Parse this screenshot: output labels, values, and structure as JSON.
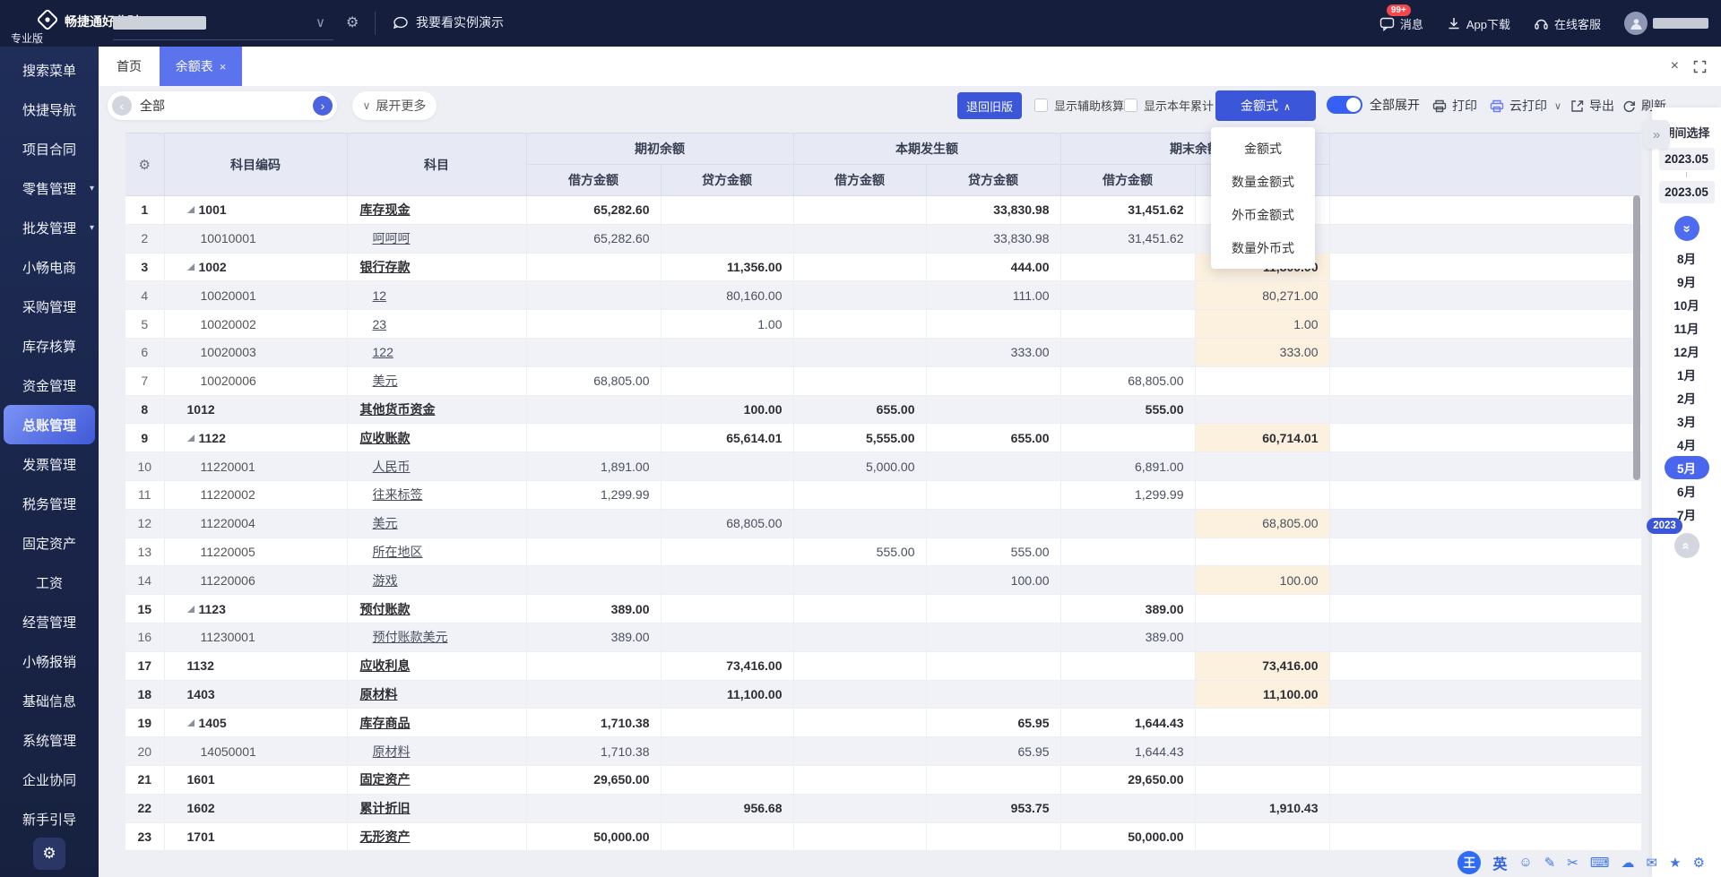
{
  "topbar": {
    "brand": "畅捷通好业财",
    "brand_sub": "专业版",
    "demo_link": "我要看实例演示",
    "messages_label": "消息",
    "messages_badge": "99+",
    "app_download": "App下载",
    "online_service": "在线客服"
  },
  "tabs": {
    "home": "首页",
    "active": "余额表"
  },
  "icons": {
    "chevron_left": "‹",
    "chevron_right": "›",
    "chevron_down": "∨",
    "chevron_up": "∧",
    "close": "×",
    "collapse_right": "»",
    "double_chevron": "«",
    "gear": "⚙",
    "caret_down_small": "▾"
  },
  "toolbar": {
    "filter_all": "全部",
    "expand_more": "展开更多",
    "back_old": "退回旧版",
    "cb_aux": "显示辅助核算",
    "cb_ytd": "显示本年累计",
    "amount_style": "金额式",
    "expand_all": "全部展开",
    "print": "打印",
    "cloud_print": "云打印",
    "export": "导出",
    "refresh": "刷新"
  },
  "dropdown": {
    "items": [
      "金额式",
      "数量金额式",
      "外币金额式",
      "数量外币式"
    ]
  },
  "table": {
    "headers": {
      "code": "科目编码",
      "subject": "科目",
      "opening": "期初余额",
      "current": "本期发生额",
      "closing": "期末余额",
      "debit": "借方金额",
      "credit": "贷方金额"
    },
    "rows": [
      {
        "n": 1,
        "code": "1001",
        "name": "库存现金",
        "parent": true,
        "tri": true,
        "oj": "65,282.60",
        "oc": "",
        "cj": "",
        "cc": "33,830.98",
        "ej": "31,451.62",
        "ec": "",
        "hl": false
      },
      {
        "n": 2,
        "code": "10010001",
        "name": "呵呵呵",
        "parent": false,
        "tri": false,
        "oj": "65,282.60",
        "oc": "",
        "cj": "",
        "cc": "33,830.98",
        "ej": "31,451.62",
        "ec": "",
        "hl": false
      },
      {
        "n": 3,
        "code": "1002",
        "name": "银行存款",
        "parent": true,
        "tri": true,
        "oj": "",
        "oc": "11,356.00",
        "cj": "",
        "cc": "444.00",
        "ej": "",
        "ec": "11,800.00",
        "hl": true
      },
      {
        "n": 4,
        "code": "10020001",
        "name": "12",
        "parent": false,
        "tri": false,
        "oj": "",
        "oc": "80,160.00",
        "cj": "",
        "cc": "111.00",
        "ej": "",
        "ec": "80,271.00",
        "hl": true
      },
      {
        "n": 5,
        "code": "10020002",
        "name": "23",
        "parent": false,
        "tri": false,
        "oj": "",
        "oc": "1.00",
        "cj": "",
        "cc": "",
        "ej": "",
        "ec": "1.00",
        "hl": true
      },
      {
        "n": 6,
        "code": "10020003",
        "name": "122",
        "parent": false,
        "tri": false,
        "oj": "",
        "oc": "",
        "cj": "",
        "cc": "333.00",
        "ej": "",
        "ec": "333.00",
        "hl": true
      },
      {
        "n": 7,
        "code": "10020006",
        "name": "美元",
        "parent": false,
        "tri": false,
        "oj": "68,805.00",
        "oc": "",
        "cj": "",
        "cc": "",
        "ej": "68,805.00",
        "ec": "",
        "hl": false
      },
      {
        "n": 8,
        "code": "1012",
        "name": "其他货币资金",
        "parent": true,
        "tri": false,
        "oj": "",
        "oc": "100.00",
        "cj": "655.00",
        "cc": "",
        "ej": "555.00",
        "ec": "",
        "hl": false
      },
      {
        "n": 9,
        "code": "1122",
        "name": "应收账款",
        "parent": true,
        "tri": true,
        "oj": "",
        "oc": "65,614.01",
        "cj": "5,555.00",
        "cc": "655.00",
        "ej": "",
        "ec": "60,714.01",
        "hl": true
      },
      {
        "n": 10,
        "code": "11220001",
        "name": "人民币",
        "parent": false,
        "tri": false,
        "oj": "1,891.00",
        "oc": "",
        "cj": "5,000.00",
        "cc": "",
        "ej": "6,891.00",
        "ec": "",
        "hl": false
      },
      {
        "n": 11,
        "code": "11220002",
        "name": "往来标签",
        "parent": false,
        "tri": false,
        "oj": "1,299.99",
        "oc": "",
        "cj": "",
        "cc": "",
        "ej": "1,299.99",
        "ec": "",
        "hl": false
      },
      {
        "n": 12,
        "code": "11220004",
        "name": "美元",
        "parent": false,
        "tri": false,
        "oj": "",
        "oc": "68,805.00",
        "cj": "",
        "cc": "",
        "ej": "",
        "ec": "68,805.00",
        "hl": true
      },
      {
        "n": 13,
        "code": "11220005",
        "name": "所在地区",
        "parent": false,
        "tri": false,
        "oj": "",
        "oc": "",
        "cj": "555.00",
        "cc": "555.00",
        "ej": "",
        "ec": "",
        "hl": false
      },
      {
        "n": 14,
        "code": "11220006",
        "name": "游戏",
        "parent": false,
        "tri": false,
        "oj": "",
        "oc": "",
        "cj": "",
        "cc": "100.00",
        "ej": "",
        "ec": "100.00",
        "hl": true
      },
      {
        "n": 15,
        "code": "1123",
        "name": "预付账款",
        "parent": true,
        "tri": true,
        "oj": "389.00",
        "oc": "",
        "cj": "",
        "cc": "",
        "ej": "389.00",
        "ec": "",
        "hl": false
      },
      {
        "n": 16,
        "code": "11230001",
        "name": "预付账款美元",
        "parent": false,
        "tri": false,
        "oj": "389.00",
        "oc": "",
        "cj": "",
        "cc": "",
        "ej": "389.00",
        "ec": "",
        "hl": false
      },
      {
        "n": 17,
        "code": "1132",
        "name": "应收利息",
        "parent": true,
        "tri": false,
        "oj": "",
        "oc": "73,416.00",
        "cj": "",
        "cc": "",
        "ej": "",
        "ec": "73,416.00",
        "hl": true
      },
      {
        "n": 18,
        "code": "1403",
        "name": "原材料",
        "parent": true,
        "tri": false,
        "oj": "",
        "oc": "11,100.00",
        "cj": "",
        "cc": "",
        "ej": "",
        "ec": "11,100.00",
        "hl": true
      },
      {
        "n": 19,
        "code": "1405",
        "name": "库存商品",
        "parent": true,
        "tri": true,
        "oj": "1,710.38",
        "oc": "",
        "cj": "",
        "cc": "65.95",
        "ej": "1,644.43",
        "ec": "",
        "hl": false
      },
      {
        "n": 20,
        "code": "14050001",
        "name": "原材料",
        "parent": false,
        "tri": false,
        "oj": "1,710.38",
        "oc": "",
        "cj": "",
        "cc": "65.95",
        "ej": "1,644.43",
        "ec": "",
        "hl": false
      },
      {
        "n": 21,
        "code": "1601",
        "name": "固定资产",
        "parent": true,
        "tri": false,
        "oj": "29,650.00",
        "oc": "",
        "cj": "",
        "cc": "",
        "ej": "29,650.00",
        "ec": "",
        "hl": false
      },
      {
        "n": 22,
        "code": "1602",
        "name": "累计折旧",
        "parent": true,
        "tri": false,
        "oj": "",
        "oc": "956.68",
        "cj": "",
        "cc": "953.75",
        "ej": "",
        "ec": "1,910.43",
        "hl": false
      },
      {
        "n": 23,
        "code": "1701",
        "name": "无形资产",
        "parent": true,
        "tri": false,
        "oj": "50,000.00",
        "oc": "",
        "cj": "",
        "cc": "",
        "ej": "50,000.00",
        "ec": "",
        "hl": false
      }
    ]
  },
  "sidebar": {
    "items": [
      {
        "label": "搜索菜单",
        "arrow": false,
        "active": false
      },
      {
        "label": "快捷导航",
        "arrow": false,
        "active": false
      },
      {
        "label": "项目合同",
        "arrow": false,
        "active": false
      },
      {
        "label": "零售管理",
        "arrow": true,
        "active": false
      },
      {
        "label": "批发管理",
        "arrow": true,
        "active": false
      },
      {
        "label": "小畅电商",
        "arrow": false,
        "active": false
      },
      {
        "label": "采购管理",
        "arrow": false,
        "active": false
      },
      {
        "label": "库存核算",
        "arrow": false,
        "active": false
      },
      {
        "label": "资金管理",
        "arrow": false,
        "active": false
      },
      {
        "label": "总账管理",
        "arrow": false,
        "active": true
      },
      {
        "label": "发票管理",
        "arrow": false,
        "active": false
      },
      {
        "label": "税务管理",
        "arrow": false,
        "active": false
      },
      {
        "label": "固定资产",
        "arrow": false,
        "active": false
      },
      {
        "label": "工资",
        "arrow": false,
        "active": false
      },
      {
        "label": "经营管理",
        "arrow": false,
        "active": false
      },
      {
        "label": "小畅报销",
        "arrow": false,
        "active": false
      },
      {
        "label": "基础信息",
        "arrow": false,
        "active": false
      },
      {
        "label": "系统管理",
        "arrow": false,
        "active": false
      },
      {
        "label": "企业协同",
        "arrow": false,
        "active": false
      },
      {
        "label": "新手引导",
        "arrow": false,
        "active": false
      }
    ]
  },
  "period": {
    "title": "期间选择",
    "from": "2023.05",
    "to": "2023.05",
    "year_badge": "2023",
    "months_above": [
      "8月",
      "9月",
      "10月",
      "11月",
      "12月"
    ],
    "months_below": [
      "1月",
      "2月",
      "3月",
      "4月",
      "5月",
      "6月",
      "7月"
    ],
    "selected": "5月"
  },
  "ime": {
    "avatar_glyph": "王",
    "lang_label": "英",
    "icons": [
      {
        "name": "smiley-icon",
        "glyph": "☺"
      },
      {
        "name": "pencil-icon",
        "glyph": "✎"
      },
      {
        "name": "scissors-icon",
        "glyph": "✂"
      },
      {
        "name": "keyboard-icon",
        "glyph": "⌨"
      },
      {
        "name": "cloud-icon",
        "glyph": "☁"
      },
      {
        "name": "mail-icon",
        "glyph": "✉"
      },
      {
        "name": "star-icon",
        "glyph": "★"
      },
      {
        "name": "gear-icon",
        "glyph": "⚙"
      }
    ]
  }
}
